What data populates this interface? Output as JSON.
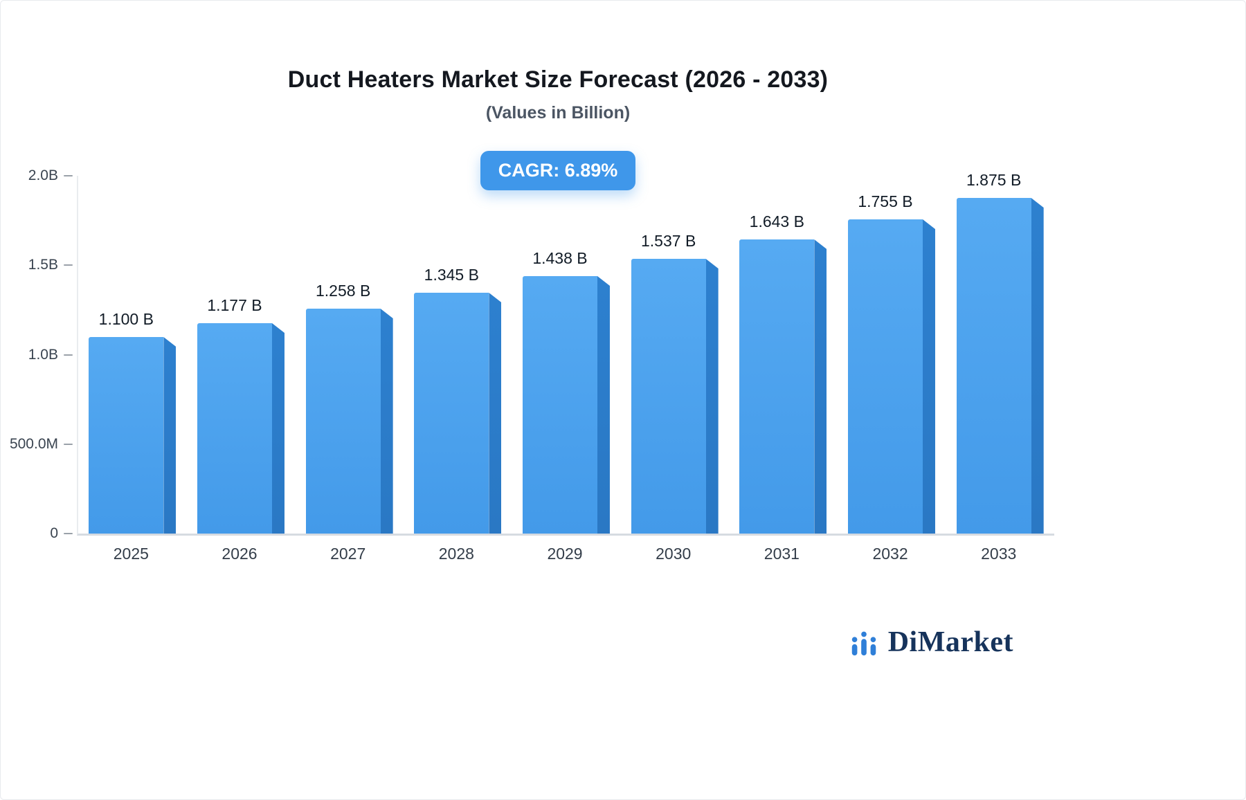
{
  "header": {
    "title": "Duct Heaters Market Size Forecast (2026 - 2033)",
    "subtitle": "(Values in Billion)",
    "cagr_badge": "CAGR: 6.89%"
  },
  "logo": {
    "text": "DiMarket"
  },
  "colors": {
    "bar_face": "#479BE9",
    "bar_side": "#2C7CCB",
    "badge": "#3F97EA",
    "logo_blue": "#2F7FD8",
    "logo_navy": "#16335B"
  },
  "chart_data": {
    "type": "bar",
    "title": "Duct Heaters Market Size Forecast (2026 - 2033)",
    "subtitle": "(Values in Billion)",
    "cagr": "CAGR: 6.89%",
    "categories": [
      "2025",
      "2026",
      "2027",
      "2028",
      "2029",
      "2030",
      "2031",
      "2032",
      "2033"
    ],
    "values": [
      1.1,
      1.177,
      1.258,
      1.345,
      1.438,
      1.537,
      1.643,
      1.755,
      1.875
    ],
    "labels": [
      "1.100 B",
      "1.177 B",
      "1.258 B",
      "1.345 B",
      "1.438 B",
      "1.537 B",
      "1.643 B",
      "1.755 B",
      "1.875 B"
    ],
    "xlabel": "",
    "ylabel": "",
    "ylim": [
      0,
      2.0
    ],
    "grid": false,
    "legend": false,
    "yticks": [
      {
        "value": 2.0,
        "label": "2.0B"
      },
      {
        "value": 1.5,
        "label": "1.5B"
      },
      {
        "value": 1.0,
        "label": "1.0B"
      },
      {
        "value": 0.5,
        "label": "500.0M"
      },
      {
        "value": 0.0,
        "label": "0"
      }
    ]
  }
}
